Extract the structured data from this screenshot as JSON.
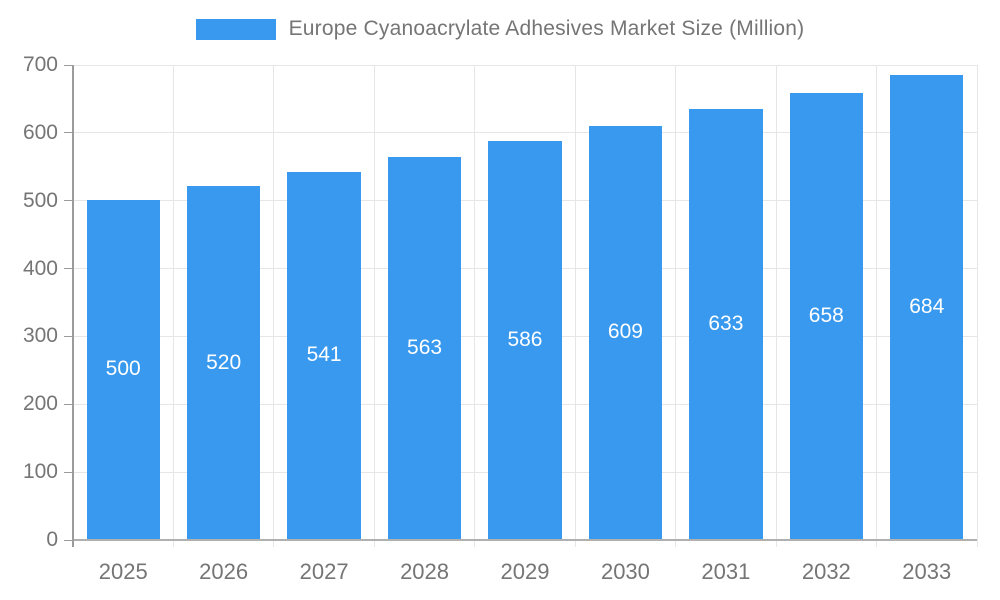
{
  "legend": {
    "label": "Europe Cyanoacrylate Adhesives Market Size (Million)"
  },
  "chart_data": {
    "type": "bar",
    "title": "Europe Cyanoacrylate Adhesives Market Size (Million)",
    "series_name": "Europe Cyanoacrylate Adhesives Market Size (Million)",
    "categories": [
      "2025",
      "2026",
      "2027",
      "2028",
      "2029",
      "2030",
      "2031",
      "2032",
      "2033"
    ],
    "values": [
      500,
      520,
      541,
      563,
      586,
      609,
      633,
      658,
      684
    ],
    "value_labels": [
      "500",
      "520",
      "541",
      "563",
      "586",
      "609",
      "633",
      "658",
      "684"
    ],
    "xlabel": "",
    "ylabel": "",
    "ylim": [
      0,
      700
    ],
    "y_tick_step": 100,
    "y_ticks": [
      "0",
      "100",
      "200",
      "300",
      "400",
      "500",
      "600",
      "700"
    ],
    "grid": true,
    "legend_position": "top",
    "colors": {
      "bar": "#3999EE",
      "value_label": "#FFFFFF",
      "axis_text": "#757575"
    }
  }
}
